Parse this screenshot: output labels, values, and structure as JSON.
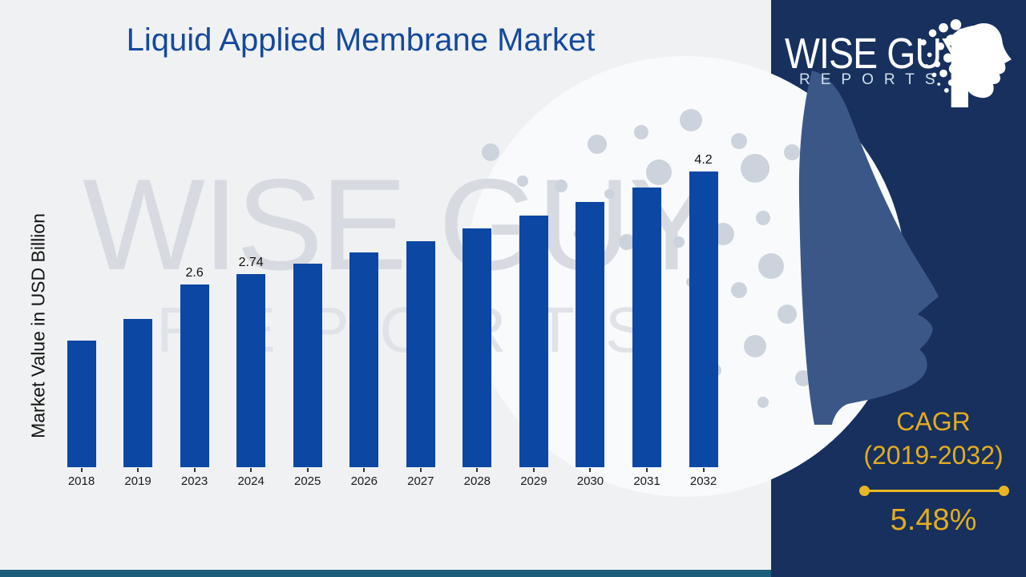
{
  "title": "Liquid Applied Membrane Market",
  "ylabel": "Market Value in USD Billion",
  "watermark": {
    "line1": "WISE GUY",
    "line2": "REPORTS"
  },
  "logo": {
    "line1": "WISE GUY",
    "line2": "REPORTS"
  },
  "cagr": {
    "label": "CAGR",
    "range": "(2019-2032)",
    "value": "5.48%"
  },
  "colors": {
    "bar": "#0c47a4",
    "title": "#15499c",
    "panel": "#17305e",
    "gold": "#e2ac20",
    "teal_strip": "#1d5d7c",
    "face_silhouette": "#3a5787",
    "background": "#f0f1f2"
  },
  "chart_data": {
    "type": "bar",
    "title": "Liquid Applied Membrane Market",
    "xlabel": "",
    "ylabel": "Market Value in USD Billion",
    "categories": [
      "2018",
      "2019",
      "2023",
      "2024",
      "2025",
      "2026",
      "2027",
      "2028",
      "2029",
      "2030",
      "2031",
      "2032"
    ],
    "values": [
      1.8,
      2.1,
      2.6,
      2.74,
      2.89,
      3.05,
      3.21,
      3.39,
      3.57,
      3.77,
      3.97,
      4.2
    ],
    "bar_labels": [
      "",
      "",
      "2.6",
      "2.74",
      "",
      "",
      "",
      "",
      "",
      "",
      "",
      "4.2"
    ],
    "ylim": [
      0,
      4.6
    ],
    "grid": false,
    "legend": "none",
    "bar_color": "#0c47a4",
    "units": "USD Billion",
    "cagr_percent": 5.48,
    "cagr_period": "2019-2032"
  }
}
